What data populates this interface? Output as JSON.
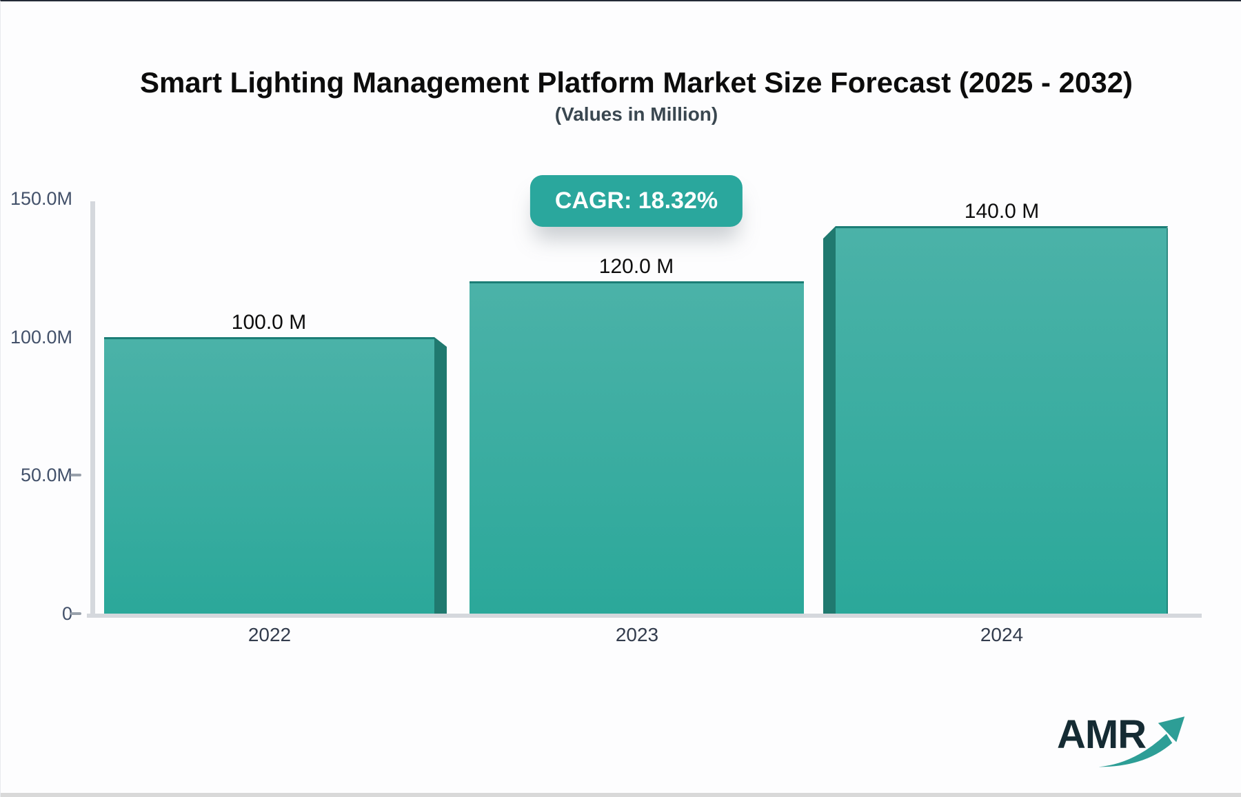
{
  "title": "Smart Lighting Management Platform Market Size Forecast (2025 - 2032)",
  "subtitle": "(Values in Million)",
  "badge": {
    "text": "CAGR: 18.32%"
  },
  "logo": {
    "text": "AMR"
  },
  "colors": {
    "badge_bg": "#2aa79d",
    "bar_top": "#4bb2a8",
    "bar_bottom": "#2ba89a",
    "bar_side": "#20796f",
    "bar_edge": "#1b7d76",
    "axis_color": "#d5d8dd",
    "logo_text": "#152b33",
    "logo_arrow": "#2d9e96"
  },
  "chart_data": {
    "type": "bar",
    "title": "Smart Lighting Management Platform Market Size Forecast (2025 - 2032)",
    "subtitle": "(Values in Million)",
    "cagr": "18.32%",
    "units": "Million",
    "categories": [
      "2022",
      "2023",
      "2024"
    ],
    "values": [
      100,
      120,
      140
    ],
    "value_labels": [
      "100.0 M",
      "120.0 M",
      "140.0 M"
    ],
    "xlabel": "",
    "ylabel": "",
    "ylim": [
      0,
      150
    ],
    "grid": false,
    "legend": false,
    "yticks": [
      {
        "label": "150.0M",
        "value": 150,
        "dash": false
      },
      {
        "label": "100.0M",
        "value": 100,
        "dash": false
      },
      {
        "label": "50.0M",
        "value": 50,
        "dash": true
      },
      {
        "label": "0",
        "value": 0,
        "dash": true
      }
    ]
  }
}
